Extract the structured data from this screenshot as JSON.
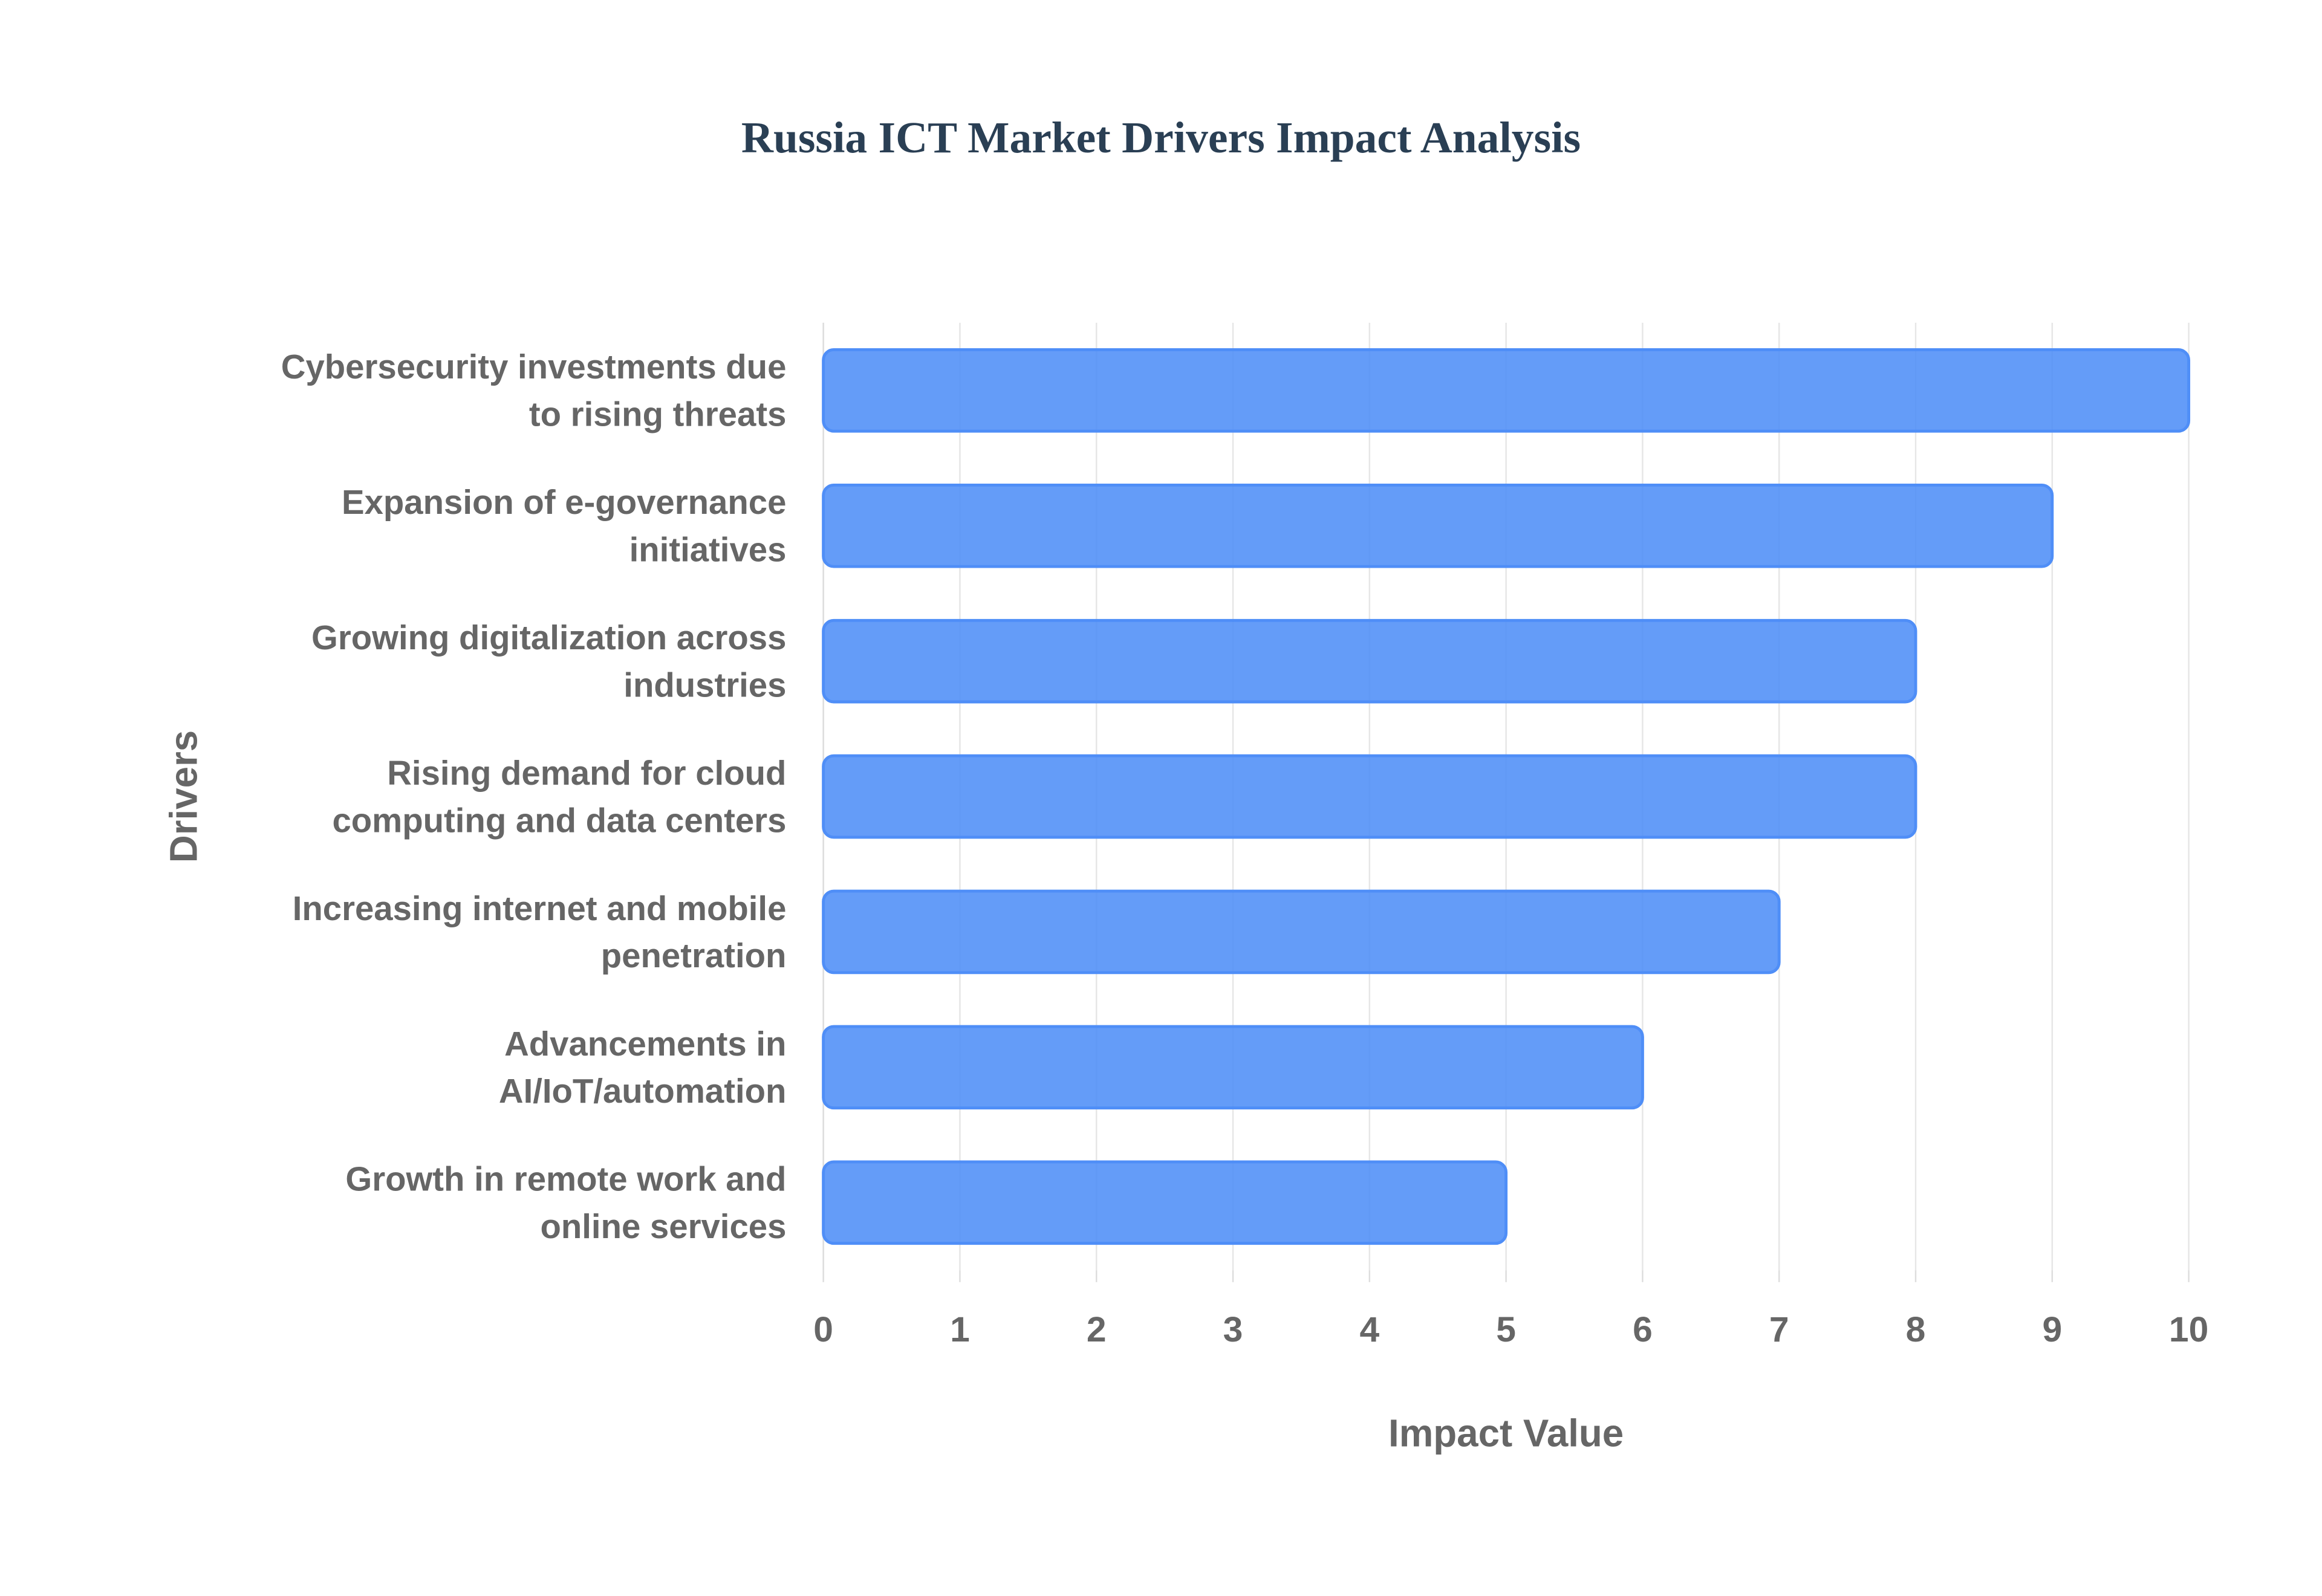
{
  "chart_data": {
    "type": "bar",
    "orientation": "horizontal",
    "title": "Russia ICT Market Drivers Impact Analysis",
    "xlabel": "Impact Value",
    "ylabel": "Drivers",
    "categories": [
      "Cybersecurity investments due to rising threats",
      "Expansion of e-governance initiatives",
      "Growing digitalization across industries",
      "Rising demand for cloud computing and data centers",
      "Increasing internet and mobile penetration",
      "Advancements in AI/IoT/automation",
      "Growth in remote work and online services"
    ],
    "values": [
      10,
      9,
      8,
      8,
      7,
      6,
      5
    ],
    "color": "#4f8ef7",
    "xlim": [
      0,
      10
    ],
    "xticks": [
      0,
      1,
      2,
      3,
      4,
      5,
      6,
      7,
      8,
      9,
      10
    ],
    "grid": true
  }
}
